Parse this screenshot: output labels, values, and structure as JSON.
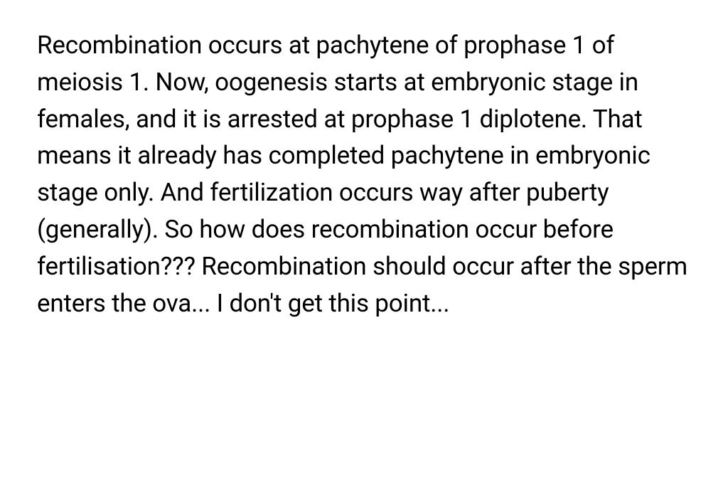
{
  "paragraph": {
    "text": "Recombination occurs at pachytene of prophase 1 of meiosis 1. Now, oogenesis starts at embryonic stage in females, and it is arrested at prophase 1 diplotene. That means it already has completed pachytene in embryonic stage only. And fertilization occurs way after puberty (generally). So how does recombination occur before fertilisation??? Recombination should occur after the sperm enters the ova... I don't get this point...",
    "font_size": 35,
    "line_height": 1.48,
    "color": "#000000",
    "background_color": "#ffffff",
    "font_weight": 400
  }
}
